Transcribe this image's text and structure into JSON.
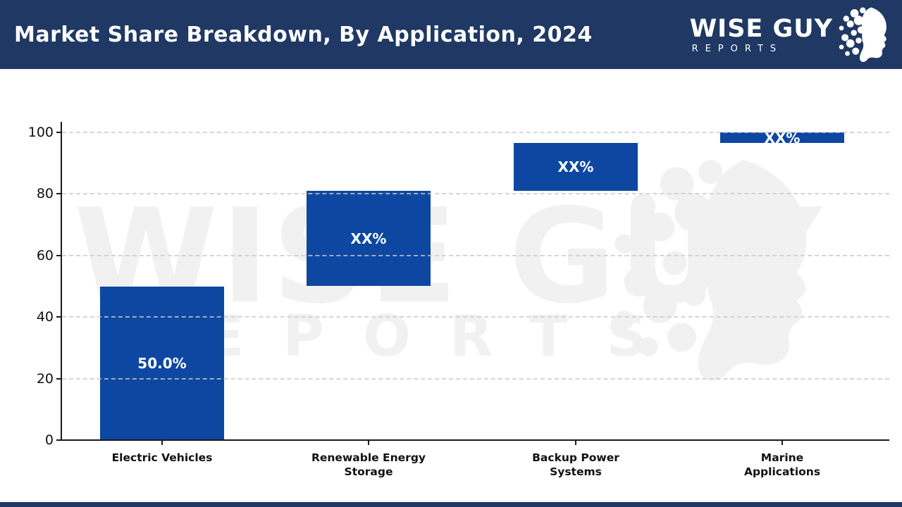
{
  "header": {
    "title": "Market Share Breakdown, By Application, 2024",
    "logo": {
      "wordmark": "WISE GUY",
      "subtitle": "REPORTS"
    }
  },
  "watermark": {
    "line1": "WISE GUY",
    "line2": "REPORTS"
  },
  "colors": {
    "header_bg": "#1f3864",
    "footer_bg": "#1f3864",
    "bar": "#0d47a1",
    "bar_label": "#ffffff",
    "grid": "#c9c9c9",
    "axis": "#1a1a1a",
    "text": "#111111",
    "watermark": "#f1f1f1"
  },
  "chart_data": {
    "type": "bar",
    "subtype": "waterfall",
    "title": "Market Share Breakdown, By Application, 2024",
    "xlabel": "",
    "ylabel": "",
    "ylim": [
      0,
      105
    ],
    "yticks": [
      0,
      20,
      40,
      60,
      80,
      100
    ],
    "grid": "horizontal-dashed-over-bars",
    "legend": "none",
    "bars": [
      {
        "category": "Electric Vehicles",
        "category_lines": [
          "Electric Vehicles"
        ],
        "start": 0,
        "end": 50,
        "value": 50.0,
        "label": "50.0%"
      },
      {
        "category": "Renewable Energy Storage",
        "category_lines": [
          "Renewable Energy",
          "Storage"
        ],
        "start": 50,
        "end": 81,
        "value": null,
        "label": "XX%"
      },
      {
        "category": "Backup Power Systems",
        "category_lines": [
          "Backup Power",
          "Systems"
        ],
        "start": 81,
        "end": 96.5,
        "value": null,
        "label": "XX%"
      },
      {
        "category": "Marine Applications",
        "category_lines": [
          "Marine",
          "Applications"
        ],
        "start": 96.5,
        "end": 100,
        "value": null,
        "label": "XX%"
      }
    ]
  }
}
